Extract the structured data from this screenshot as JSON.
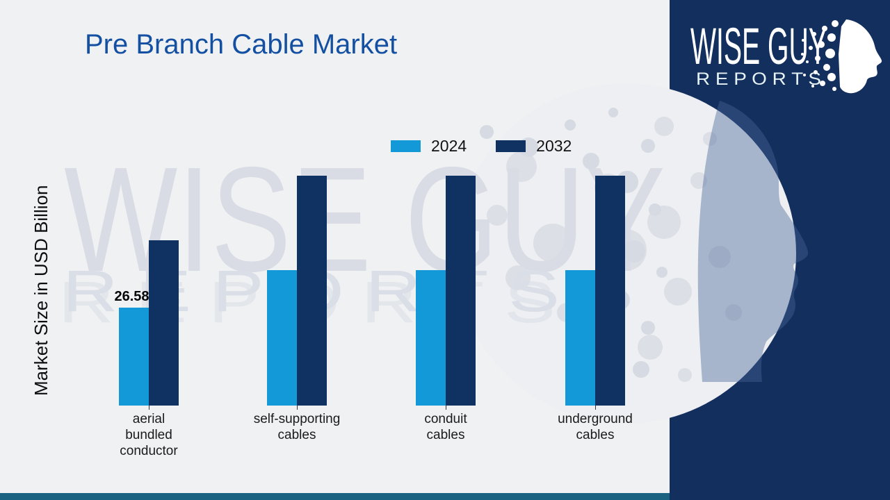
{
  "page": {
    "title": "Pre Branch Cable Market",
    "title_color": "#1450a2",
    "background_color": "#f0f1f3"
  },
  "watermark": {
    "line1": "WISE GUY",
    "line2": "R E P O R T S",
    "color": "#d9dce4"
  },
  "logo": {
    "line1": "WISE GUY",
    "line2": "R E P O R T S",
    "panel_color": "#132f5d",
    "strip_color": "#1b6180"
  },
  "legend": {
    "items": [
      {
        "label": "2024",
        "color": "#1499d8"
      },
      {
        "label": "2032",
        "color": "#103262"
      }
    ]
  },
  "chart_data": {
    "type": "bar",
    "title": "Pre Branch Cable Market",
    "xlabel": "",
    "ylabel": "Market Size in USD Billion",
    "categories": [
      "aerial bundled conductor",
      "self-supporting cables",
      "conduit cables",
      "underground cables"
    ],
    "series": [
      {
        "name": "2024",
        "color": "#1499d8",
        "values": [
          26.58,
          36.8,
          36.8,
          36.8
        ]
      },
      {
        "name": "2032",
        "color": "#103262",
        "values": [
          44.9,
          62.4,
          62.4,
          62.4
        ]
      }
    ],
    "value_labels": [
      "26.58",
      "",
      "",
      ""
    ],
    "value_labels_series": "2024",
    "ylim": [
      0,
      66
    ],
    "grid": false,
    "axis_line": false,
    "legend_position": "top"
  }
}
